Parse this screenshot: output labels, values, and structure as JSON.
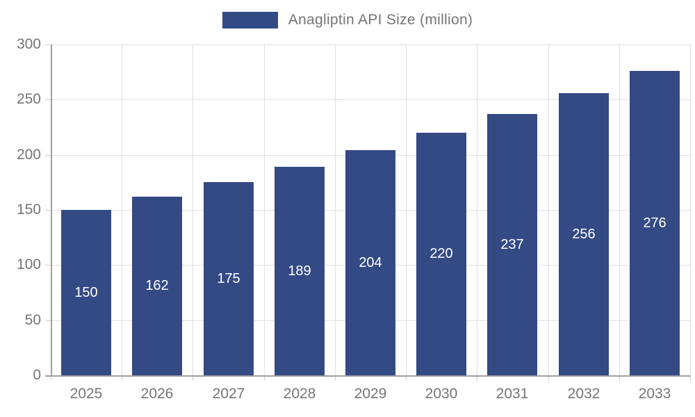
{
  "legend": {
    "label": "Anagliptin API Size (million)",
    "swatch_color": "#344a85"
  },
  "chart_data": {
    "type": "bar",
    "title": "Anagliptin API Size (million)",
    "categories": [
      "2025",
      "2026",
      "2027",
      "2028",
      "2029",
      "2030",
      "2031",
      "2032",
      "2033"
    ],
    "values": [
      150,
      162,
      175,
      189,
      204,
      220,
      237,
      256,
      276
    ],
    "xlabel": "",
    "ylabel": "",
    "ylim": [
      0,
      300
    ],
    "yticks": [
      0,
      50,
      100,
      150,
      200,
      250,
      300
    ],
    "grid": true,
    "legend_position": "top",
    "bar_color": "#344a85",
    "value_label_color": "#ffffff",
    "axis_color": "#9e9e9e",
    "gridline_color": "#e0e0e0",
    "tick_label_color": "#757575"
  }
}
